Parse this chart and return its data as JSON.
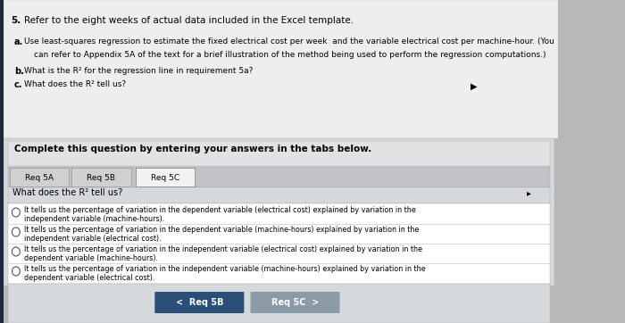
{
  "bg_color": "#b8b8b8",
  "outer_bg": "#c8c8c8",
  "white_box_color": "#f2f2f2",
  "gray_header_color": "#d8d8d8",
  "tab_row_color": "#c0c0c0",
  "tab_active_color": "#f2f2f2",
  "tab_inactive_color": "#d0d0d0",
  "options_white": "#ffffff",
  "btn_blue": "#2c4f7a",
  "btn_gray": "#8c9aa8",
  "left_bar_color": "#1a2a3a",
  "question_number": "5.",
  "question_text": "Refer to the eight weeks of actual data included in the Excel template.",
  "sub_a_label": "a.",
  "sub_a_line1": "Use least-squares regression to estimate the fixed electrical cost per week  and the variable electrical cost per machine-hour. (You",
  "sub_a_line2": "can refer to Appendix 5A of the text for a brief illustration of the method being used to perform the regression computations.)",
  "sub_b_label": "b.",
  "sub_b_text": "What is the R² for the regression line in requirement 5a?",
  "sub_c_label": "c.",
  "sub_c_text": "What does the R² tell us?",
  "complete_text": "Complete this question by entering your answers in the tabs below.",
  "tab1": "Req 5A",
  "tab2": "Req 5B",
  "tab3": "Req 5C",
  "tab_question": "What does the R² tell us?",
  "options": [
    "It tells us the percentage of variation in the dependent variable (electrical cost) explained by variation in the\nindependent variable (machine-hours).",
    "It tells us the percentage of variation in the dependent variable (machine-hours) explained by variation in the\nindependent variable (electrical cost).",
    "It tells us the percentage of variation in the independent variable (electrical cost) explained by variation in the\ndependent variable (machine-hours).",
    "It tells us the percentage of variation in the independent variable (machine-hours) explained by variation in the\ndependent variable (electrical cost)."
  ],
  "btn_left_text": "<  Req 5B",
  "btn_right_text": "Req 5C  >"
}
